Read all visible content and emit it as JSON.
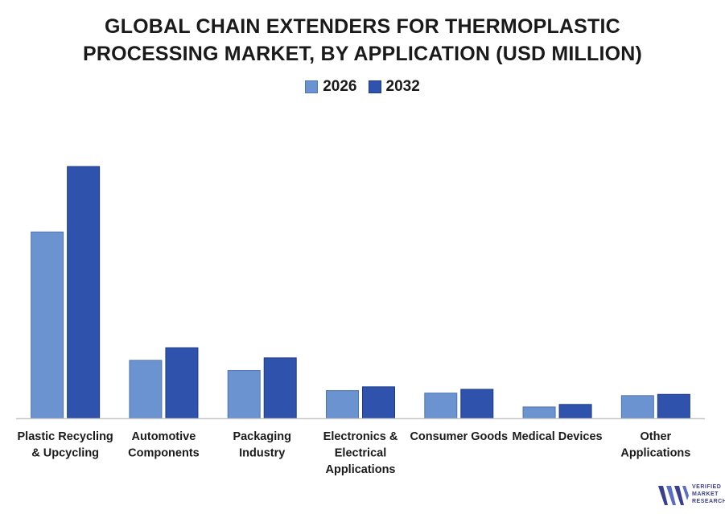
{
  "chart_data": {
    "type": "bar",
    "title": "GLOBAL CHAIN EXTENDERS FOR THERMOPLASTIC PROCESSING MARKET, BY APPLICATION (USD MILLION)",
    "title_lines": [
      "GLOBAL CHAIN EXTENDERS FOR THERMOPLASTIC",
      "PROCESSING MARKET, BY APPLICATION (USD MILLION)"
    ],
    "xlabel": "",
    "ylabel": "",
    "ylim": [
      0,
      100
    ],
    "grid": false,
    "legend_position": "top-center",
    "categories": [
      [
        "Plastic Recycling",
        "& Upcycling"
      ],
      [
        "Automotive",
        "Components"
      ],
      [
        "Packaging",
        "Industry"
      ],
      [
        "Electronics &",
        "Electrical",
        "Applications"
      ],
      [
        "Consumer Goods"
      ],
      [
        "Medical Devices"
      ],
      [
        "Other",
        "Applications"
      ]
    ],
    "series": [
      {
        "name": "2026",
        "color": "#6b93cf",
        "values": [
          74,
          23,
          19,
          11,
          10,
          4.5,
          9
        ]
      },
      {
        "name": "2032",
        "color": "#2f52ad",
        "values": [
          100,
          28,
          24,
          12.5,
          11.5,
          5.5,
          9.5
        ]
      }
    ]
  },
  "logo": {
    "lines": [
      "VERIFIED",
      "MARKET",
      "RESEARCH"
    ],
    "color": "#3a3f8f"
  }
}
